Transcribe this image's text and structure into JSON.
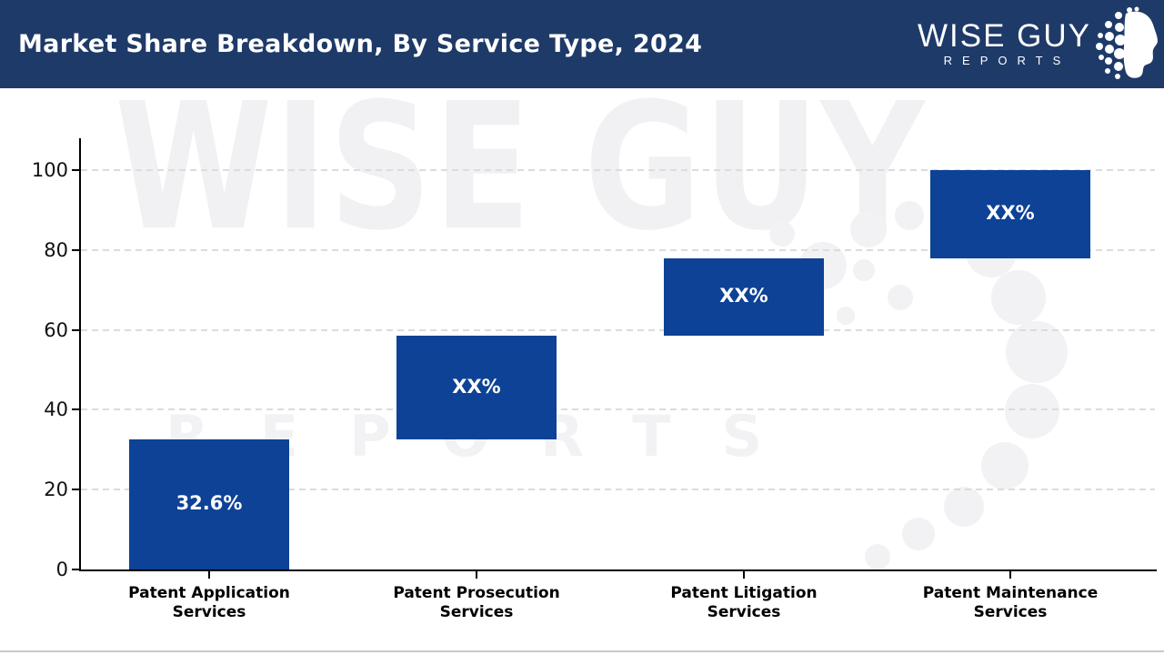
{
  "header": {
    "title": "Market Share Breakdown, By Service Type, 2024",
    "logo": {
      "line1": "WISE GUY",
      "line2": "REPORTS"
    }
  },
  "watermark": {
    "line1": "WISE GUY",
    "line2": "REPORTS"
  },
  "colors": {
    "header_bg": "#1e3a68",
    "bar": "#0d4296",
    "bar_label": "#ffffff",
    "grid": "#dcdcdc",
    "axis": "#000000",
    "watermark": "#f1f1f4",
    "page_bg": "#ffffff",
    "footer_line": "#c9c9c9"
  },
  "chart_data": {
    "type": "bar",
    "variant": "waterfall",
    "title": "Market Share Breakdown, By Service Type, 2024",
    "categories": [
      "Patent Application Services",
      "Patent Prosecution Services",
      "Patent Litigation Services",
      "Patent Maintenance Services"
    ],
    "category_lines": [
      [
        "Patent Application",
        "Services"
      ],
      [
        "Patent Prosecution",
        "Services"
      ],
      [
        "Patent Litigation",
        "Services"
      ],
      [
        "Patent Maintenance",
        "Services"
      ]
    ],
    "segments": [
      {
        "category": "Patent Application Services",
        "start": 0,
        "end": 32.6,
        "label": "32.6%"
      },
      {
        "category": "Patent Prosecution Services",
        "start": 32.6,
        "end": 58.5,
        "label": "XX%"
      },
      {
        "category": "Patent Litigation Services",
        "start": 58.5,
        "end": 78,
        "label": "XX%"
      },
      {
        "category": "Patent Maintenance Services",
        "start": 78,
        "end": 100,
        "label": "XX%"
      }
    ],
    "xlabel": "",
    "ylabel": "",
    "ylim": [
      0,
      100
    ],
    "yticks": [
      0,
      20,
      40,
      60,
      80,
      100
    ],
    "grid": "horizontal-dashed",
    "legend": "none",
    "bar_color": "#0d4296"
  }
}
